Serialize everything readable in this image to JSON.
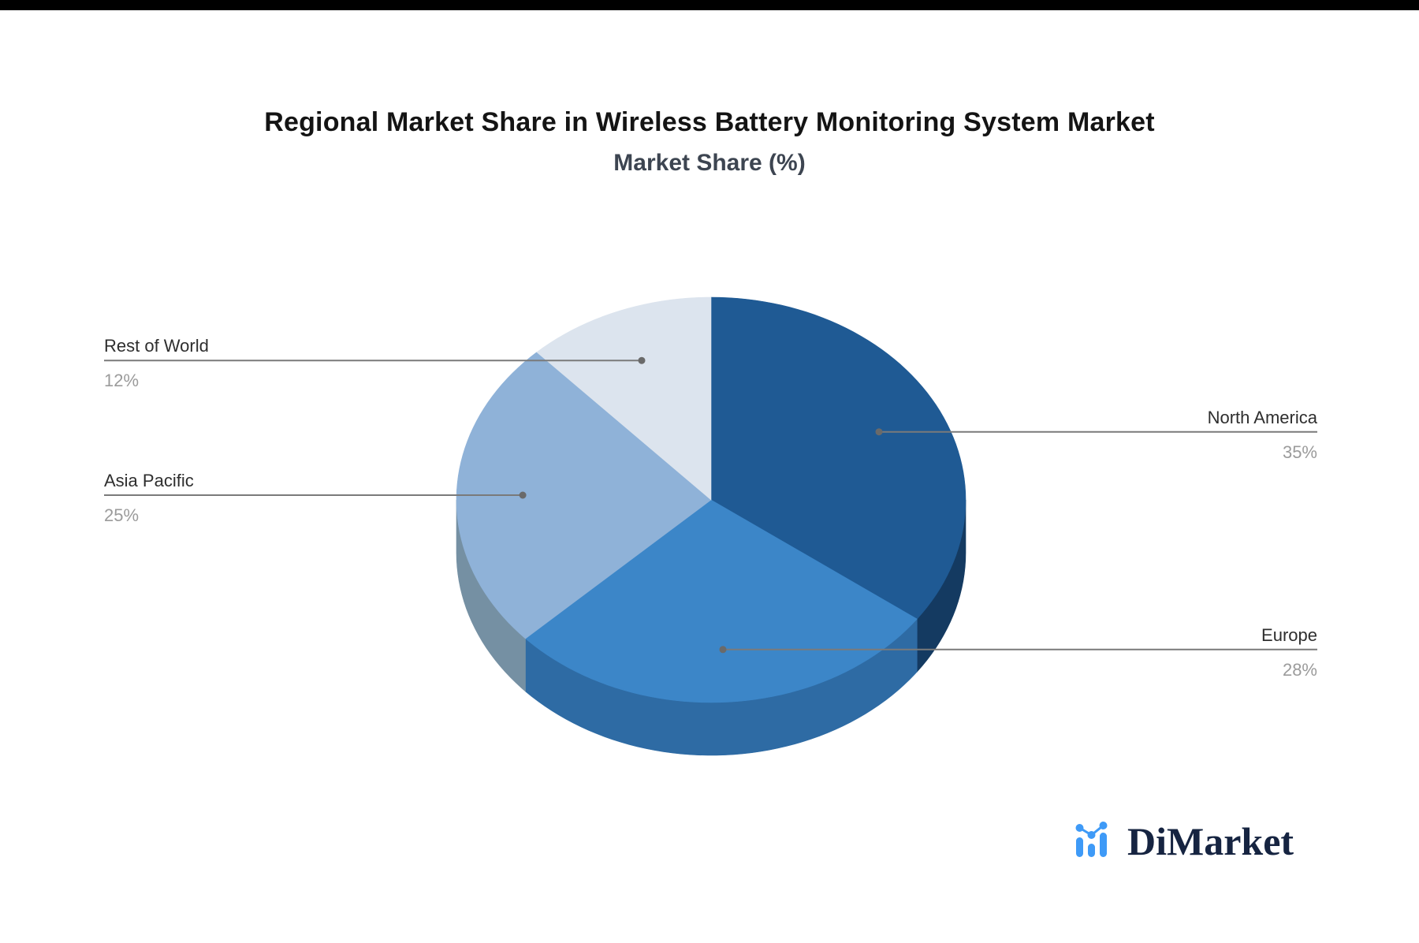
{
  "header": {
    "title": "Regional Market Share in Wireless Battery Monitoring System Market",
    "subtitle": "Market Share (%)"
  },
  "chart_data": {
    "type": "pie",
    "title": "Regional Market Share in Wireless Battery Monitoring System Market",
    "subtitle": "Market Share (%)",
    "unit": "%",
    "start_angle": "12-oclock",
    "direction": "clockwise",
    "legend": "none",
    "style": "3d-depth",
    "categories": [
      "North America",
      "Europe",
      "Asia Pacific",
      "Rest of World"
    ],
    "values": [
      35,
      28,
      25,
      12
    ],
    "slices": [
      {
        "label": "North America",
        "value": 35,
        "display": "35%",
        "color": "#1F5A94",
        "side_color": "#143A61",
        "label_side": "right"
      },
      {
        "label": "Europe",
        "value": 28,
        "display": "28%",
        "color": "#3C86C8",
        "side_color": "#2E6BA4",
        "label_side": "right"
      },
      {
        "label": "Asia Pacific",
        "value": 25,
        "display": "25%",
        "color": "#8FB2D8",
        "side_color": "#7590A3",
        "label_side": "left"
      },
      {
        "label": "Rest of World",
        "value": 12,
        "display": "12%",
        "color": "#DCE4EE",
        "side_color": "#B9C6D6",
        "label_side": "left"
      }
    ],
    "leader_line_color": "#7A7A7A",
    "leader_dot_color": "#6A6A6A",
    "label_color": "#2E2E2E",
    "value_color": "#9B9B9B"
  },
  "logo": {
    "text": "DiMarket",
    "icon": "bar-chart-logo-icon",
    "icon_color": "#3E9AF7",
    "text_color": "#162441"
  }
}
